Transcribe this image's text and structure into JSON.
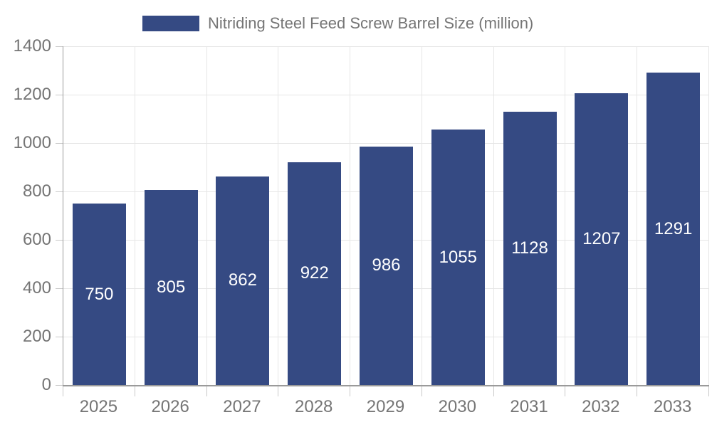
{
  "chart_data": {
    "type": "bar",
    "title": "Nitriding Steel Feed Screw Barrel Size (million)",
    "categories": [
      "2025",
      "2026",
      "2027",
      "2028",
      "2029",
      "2030",
      "2031",
      "2032",
      "2033"
    ],
    "series": [
      {
        "name": "Nitriding Steel Feed Screw Barrel Size (million)",
        "values": [
          750,
          805,
          862,
          922,
          986,
          1055,
          1128,
          1207,
          1291
        ]
      }
    ],
    "xlabel": "",
    "ylabel": "",
    "ylim": [
      0,
      1400
    ],
    "y_ticks": [
      0,
      200,
      400,
      600,
      800,
      1000,
      1200,
      1400
    ],
    "grid": true,
    "legend_position": "top",
    "value_labels_shown": true
  },
  "legend": {
    "label": "Nitriding Steel Feed Screw Barrel Size (million)"
  },
  "colors": {
    "bar": "#354A83",
    "grid": "#e6e6e6",
    "axis": "#9a9a9a",
    "tick": "#c9c9c9",
    "tick_text": "#757575",
    "value_label_text": "#ffffff",
    "background": "#ffffff"
  }
}
